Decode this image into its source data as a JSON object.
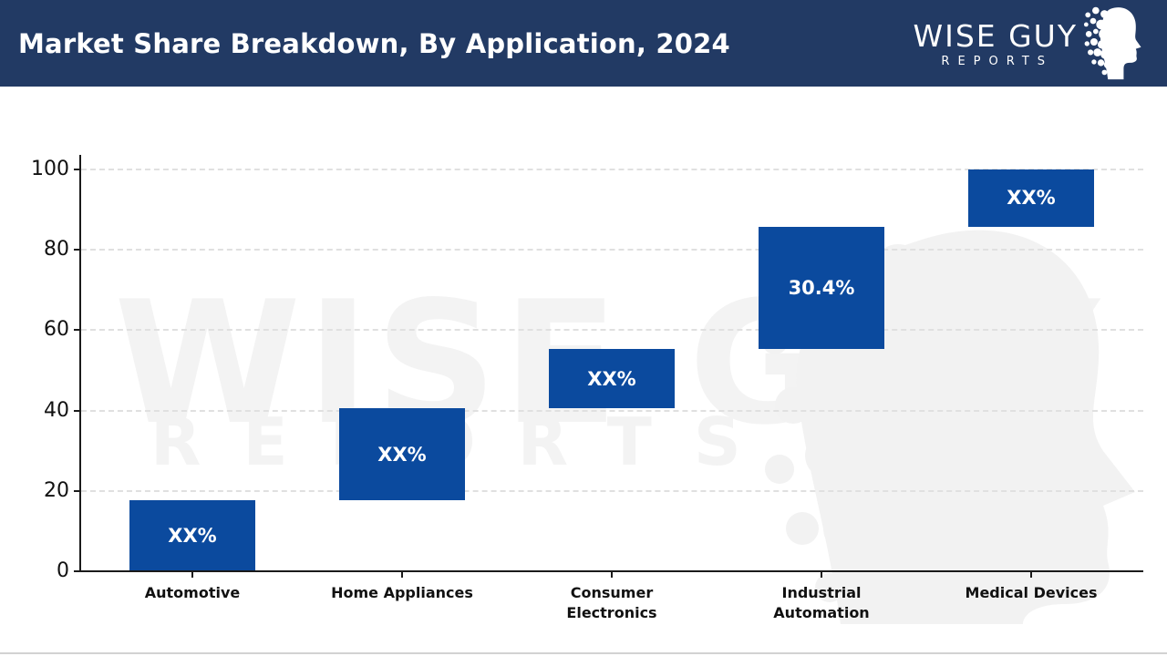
{
  "header": {
    "title": "Market Share Breakdown, By Application, 2024",
    "logo": {
      "line1": "WISE GUY",
      "line2": "REPORTS",
      "face_icon": "dotted-face-profile"
    }
  },
  "watermark": {
    "line1": "WISE GUY",
    "line2": "REPORTS",
    "face_icon": "dotted-face-profile"
  },
  "colors": {
    "header_bg": "#223a64",
    "bar": "#0b4a9e",
    "axis": "#1a1a1a",
    "grid": "#e0e0e0",
    "text": "#111111",
    "bar_label": "#ffffff",
    "watermark": "#f3f3f3",
    "footer_line": "#d2d2d2"
  },
  "chart_data": {
    "type": "bar",
    "subtype": "floating-waterfall",
    "title": "Market Share Breakdown, By Application, 2024",
    "xlabel": "",
    "ylabel": "",
    "ylim": [
      0,
      100
    ],
    "yticks": [
      0,
      20,
      40,
      60,
      80,
      100
    ],
    "grid": "horizontal-dashed",
    "legend": false,
    "categories": [
      "Automotive",
      "Home Appliances",
      "Consumer\nElectronics",
      "Industrial\nAutomation",
      "Medical Devices"
    ],
    "segments": [
      {
        "category": "Automotive",
        "start": 0,
        "end": 17.6,
        "value": 17.6,
        "label": "XX%"
      },
      {
        "category": "Home Appliances",
        "start": 17.6,
        "end": 40.5,
        "value": 22.9,
        "label": "XX%"
      },
      {
        "category": "Consumer Electronics",
        "start": 40.5,
        "end": 55.4,
        "value": 14.9,
        "label": "XX%"
      },
      {
        "category": "Industrial Automation",
        "start": 55.4,
        "end": 85.8,
        "value": 30.4,
        "label": "30.4%"
      },
      {
        "category": "Medical Devices",
        "start": 85.8,
        "end": 100,
        "value": 14.2,
        "label": "XX%"
      }
    ]
  }
}
